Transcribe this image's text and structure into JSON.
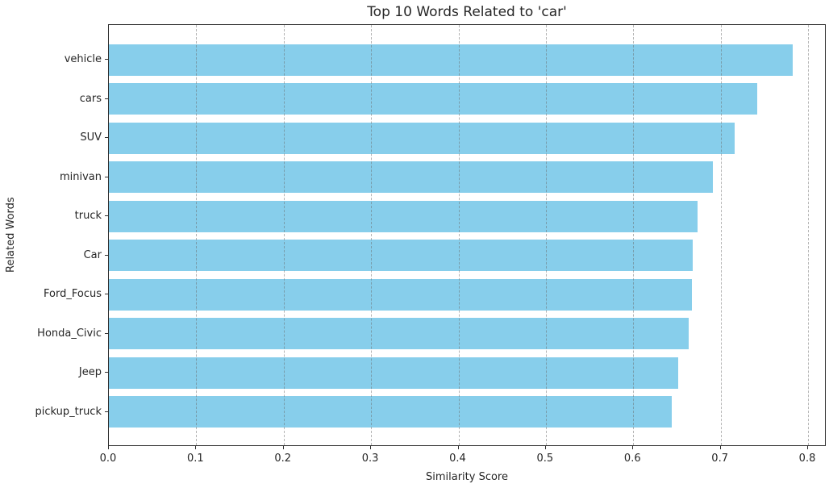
{
  "chart_data": {
    "type": "bar",
    "orientation": "horizontal",
    "title": "Top 10 Words Related to 'car'",
    "xlabel": "Similarity Score",
    "ylabel": "Related Words",
    "categories": [
      "vehicle",
      "cars",
      "SUV",
      "minivan",
      "truck",
      "Car",
      "Ford_Focus",
      "Honda_Civic",
      "Jeep",
      "pickup_truck"
    ],
    "values": [
      0.782,
      0.742,
      0.716,
      0.691,
      0.674,
      0.668,
      0.667,
      0.663,
      0.651,
      0.644
    ],
    "xlim": [
      0.0,
      0.8212
    ],
    "xticks": {
      "values": [
        0.0,
        0.1,
        0.2,
        0.3,
        0.4,
        0.5,
        0.6,
        0.7,
        0.8
      ],
      "labels": [
        "0.0",
        "0.1",
        "0.2",
        "0.3",
        "0.4",
        "0.5",
        "0.6",
        "0.7",
        "0.8"
      ]
    },
    "grid": {
      "axis": "x",
      "linestyle": "dashed",
      "color": "#b0b0b0"
    },
    "bar_color": "#87CEEB",
    "background_color": "#ffffff",
    "legend": "none"
  }
}
